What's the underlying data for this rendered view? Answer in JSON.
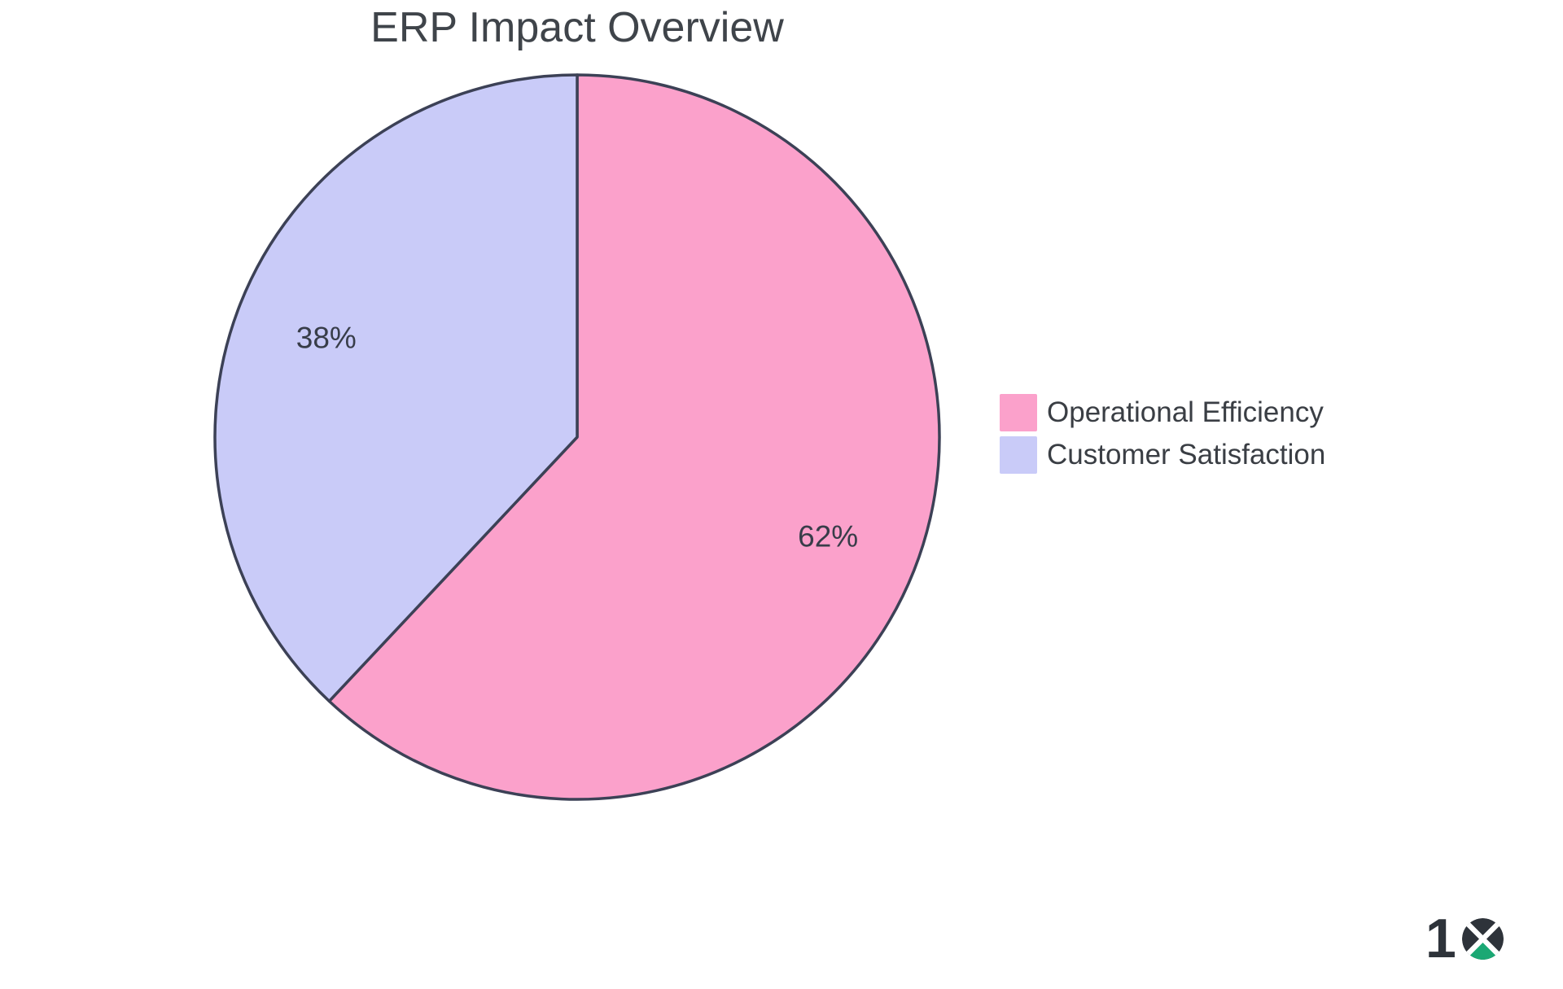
{
  "title": "ERP Impact Overview",
  "chart_data": {
    "type": "pie",
    "title": "ERP Impact Overview",
    "labels": [
      "Operational Efficiency",
      "Customer Satisfaction"
    ],
    "values": [
      62,
      38
    ],
    "slice_text": [
      "62%",
      "38%"
    ],
    "colors": [
      "#FBA1CB",
      "#C9CBF8"
    ],
    "stroke_color": "#3C4156",
    "start_angle_deg": 0,
    "direction": "clockwise",
    "legend_position": "right",
    "grid": false
  },
  "legend": {
    "items": [
      {
        "label": "Operational Efficiency",
        "color": "#FBA1CB"
      },
      {
        "label": "Customer Satisfaction",
        "color": "#C9CBF8"
      }
    ]
  },
  "watermark": {
    "text": "1",
    "icon_colors": {
      "dark": "#2E333A",
      "green": "#1BA874",
      "cross": "#FFFFFF"
    }
  }
}
